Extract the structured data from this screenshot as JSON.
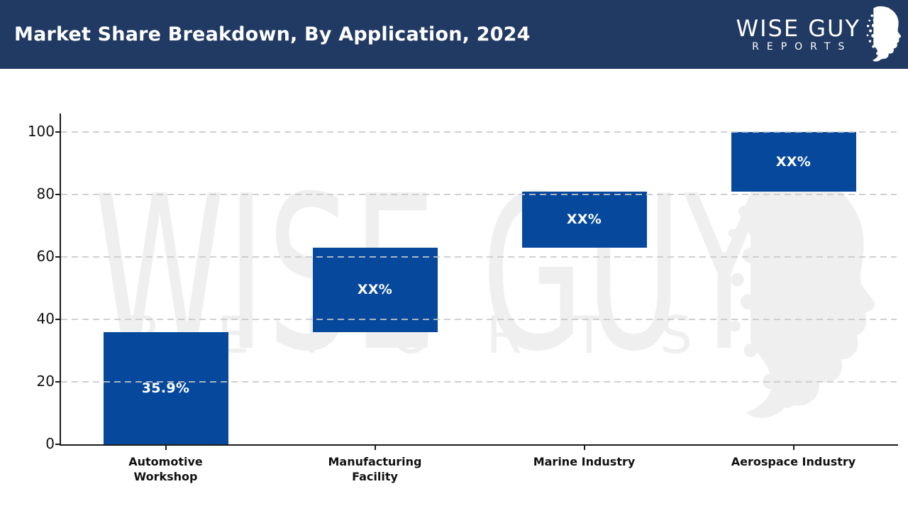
{
  "header": {
    "title": "Market Share Breakdown, By Application, 2024",
    "logo": {
      "name": "WISE GUY",
      "subname": "REPORTS"
    }
  },
  "watermark": {
    "name": "WISE GUY",
    "subname": "REPORTS"
  },
  "colors": {
    "header_bg": "#213a63",
    "bar": "#05489c",
    "grid": "#d2d2d2",
    "axis": "#1a1a1a",
    "watermark": "#efefef",
    "bar_label": "#ffffff"
  },
  "chart_data": {
    "type": "bar",
    "subtype": "floating-waterfall",
    "title": "Market Share Breakdown, By Application, 2024",
    "categories": [
      "Automotive\nWorkshop",
      "Manufacturing\nFacility",
      "Marine Industry",
      "Aerospace Industry"
    ],
    "series": [
      {
        "name": "Automotive Workshop",
        "start": 0,
        "end": 35.9,
        "label": "35.9%"
      },
      {
        "name": "Manufacturing Facility",
        "start": 35.9,
        "end": 63,
        "label": "XX%"
      },
      {
        "name": "Marine Industry",
        "start": 63,
        "end": 81,
        "label": "XX%"
      },
      {
        "name": "Aerospace Industry",
        "start": 81,
        "end": 100,
        "label": "XX%"
      }
    ],
    "xlabel": "",
    "ylabel": "",
    "ylim": [
      0,
      100
    ],
    "yticks": [
      0,
      20,
      40,
      60,
      80,
      100
    ],
    "grid": "horizontal-dashed",
    "legend": "none"
  }
}
